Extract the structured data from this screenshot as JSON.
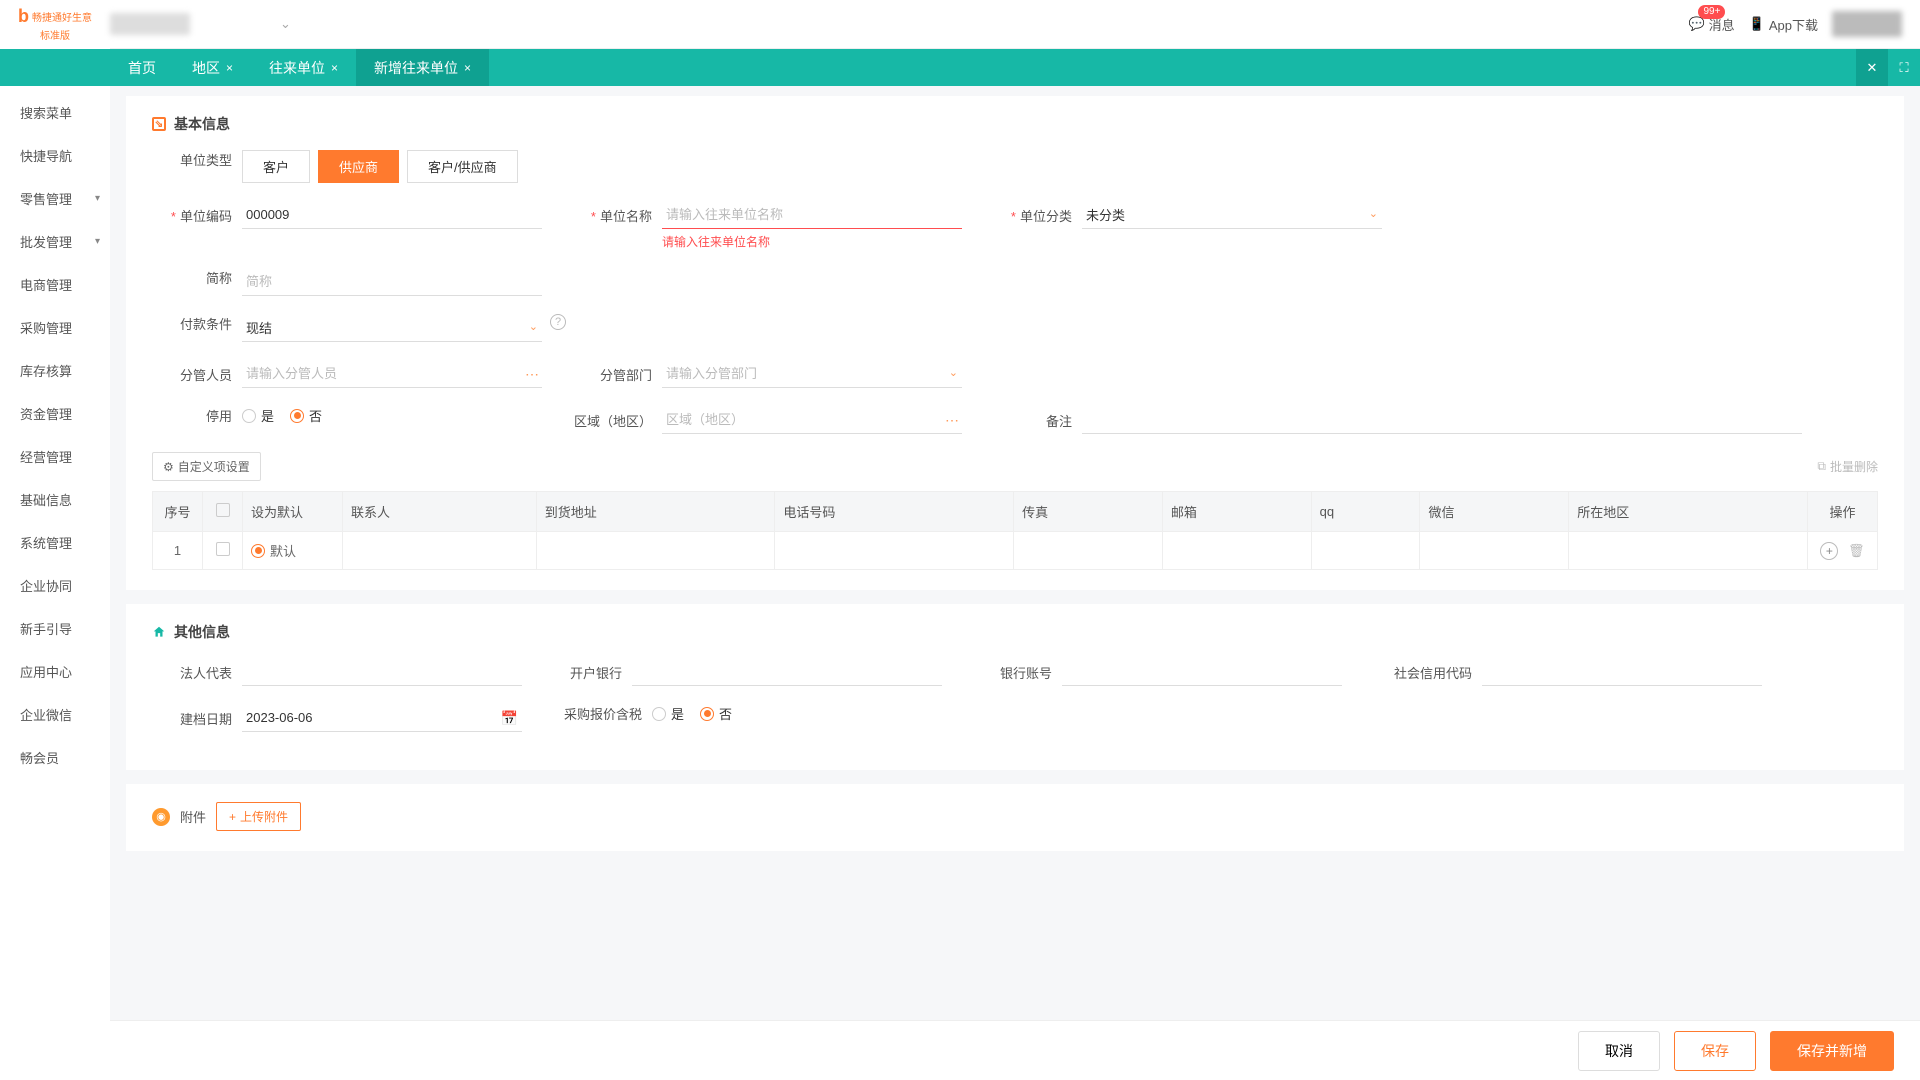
{
  "brand": {
    "edition": "标准版",
    "name": "畅捷通好生意"
  },
  "topbar": {
    "messages_label": "消息",
    "badge_count": "99+",
    "app_download": "App下载"
  },
  "tabs": {
    "home": "首页",
    "region": "地区",
    "contacts": "往来单位",
    "new_contact": "新增往来单位"
  },
  "sidebar": [
    {
      "label": "搜索菜单",
      "chev": false
    },
    {
      "label": "快捷导航",
      "chev": false
    },
    {
      "label": "零售管理",
      "chev": true
    },
    {
      "label": "批发管理",
      "chev": true
    },
    {
      "label": "电商管理",
      "chev": false
    },
    {
      "label": "采购管理",
      "chev": false
    },
    {
      "label": "库存核算",
      "chev": false
    },
    {
      "label": "资金管理",
      "chev": false
    },
    {
      "label": "经营管理",
      "chev": false
    },
    {
      "label": "基础信息",
      "chev": false
    },
    {
      "label": "系统管理",
      "chev": false
    },
    {
      "label": "企业协同",
      "chev": false
    },
    {
      "label": "新手引导",
      "chev": false
    },
    {
      "label": "应用中心",
      "chev": false
    },
    {
      "label": "企业微信",
      "chev": false
    },
    {
      "label": "畅会员",
      "chev": false
    }
  ],
  "basic": {
    "section": "基本信息",
    "unit_type_label": "单位类型",
    "type_customer": "客户",
    "type_supplier": "供应商",
    "type_both": "客户/供应商",
    "unit_code_label": "单位编码",
    "unit_code_value": "000009",
    "unit_name_label": "单位名称",
    "unit_name_placeholder": "请输入往来单位名称",
    "unit_name_error": "请输入往来单位名称",
    "unit_category_label": "单位分类",
    "unit_category_value": "未分类",
    "short_name_label": "简称",
    "short_name_placeholder": "简称",
    "payment_label": "付款条件",
    "payment_value": "现结",
    "assigned_person_label": "分管人员",
    "assigned_person_placeholder": "请输入分管人员",
    "assigned_dept_label": "分管部门",
    "assigned_dept_placeholder": "请输入分管部门",
    "stop_label": "停用",
    "yes": "是",
    "no": "否",
    "region_label": "区域（地区）",
    "region_placeholder": "区域（地区）",
    "remark_label": "备注",
    "custom_btn": "自定义项设置",
    "bulk_delete": "批量删除"
  },
  "contact_table": {
    "headers": [
      "序号",
      "",
      "设为默认",
      "联系人",
      "到货地址",
      "电话号码",
      "传真",
      "邮箱",
      "qq",
      "微信",
      "所在地区",
      "操作"
    ],
    "row1": {
      "no": "1",
      "default_label": "默认"
    }
  },
  "other": {
    "section": "其他信息",
    "legal_label": "法人代表",
    "bank_label": "开户银行",
    "account_label": "银行账号",
    "credit_code_label": "社会信用代码",
    "create_date_label": "建档日期",
    "create_date_value": "2023-06-06",
    "tax_label": "采购报价含税",
    "yes": "是",
    "no": "否"
  },
  "attach": {
    "label": "附件",
    "upload": "上传附件"
  },
  "footer": {
    "cancel": "取消",
    "save": "保存",
    "save_new": "保存并新增"
  }
}
